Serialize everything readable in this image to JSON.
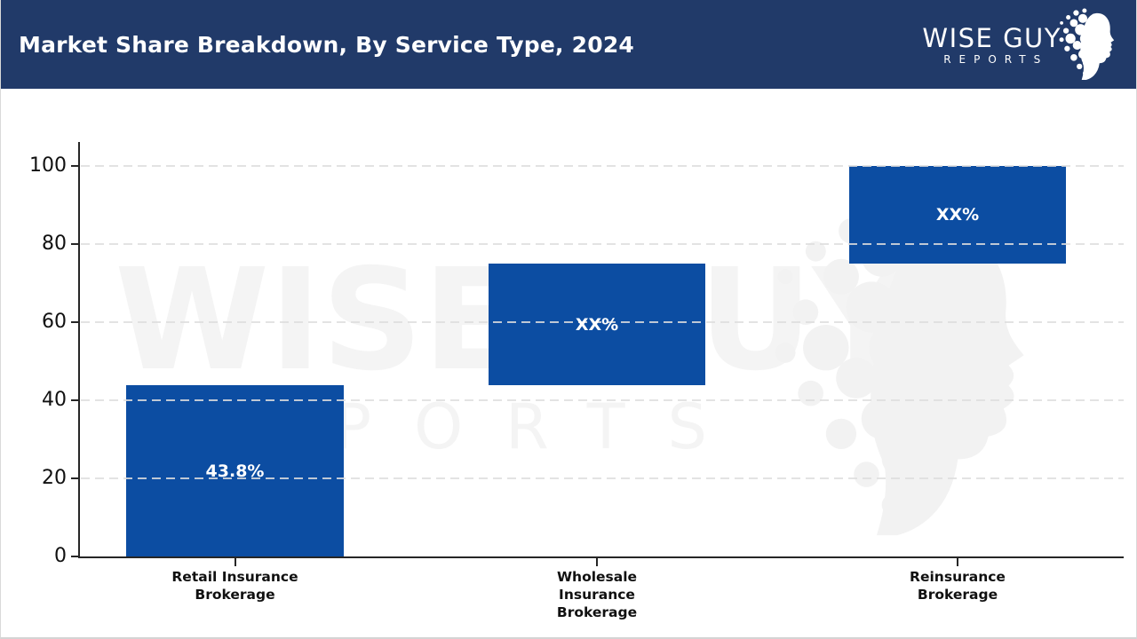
{
  "header": {
    "title": "Market Share Breakdown, By Service Type, 2024",
    "bg_color": "#213a69",
    "logo": {
      "line1": "WISE GUY",
      "line2": "REPORTS"
    }
  },
  "watermark": {
    "line1": "WISE GUY",
    "line2": "REPORTS"
  },
  "chart_data": {
    "type": "bar",
    "subtype": "floating-segment-bars",
    "title": "Market Share Breakdown, By Service Type, 2024",
    "categories": [
      "Retail Insurance\nBrokerage",
      "Wholesale\nInsurance\nBrokerage",
      "Reinsurance\nBrokerage"
    ],
    "segments": [
      {
        "from": 0,
        "to": 43.8,
        "label": "43.8%"
      },
      {
        "from": 43.8,
        "to": 75,
        "label": "XX%"
      },
      {
        "from": 75,
        "to": 100,
        "label": "XX%"
      }
    ],
    "ylim": [
      0,
      100
    ],
    "yticks": [
      0,
      20,
      40,
      60,
      80,
      100
    ],
    "xlabel": "",
    "ylabel": "",
    "grid": "horizontal-dashed",
    "legend": "none",
    "bar_color": "#0c4da2",
    "bar_label_color": "#ffffff",
    "axis_color": "#262626"
  }
}
